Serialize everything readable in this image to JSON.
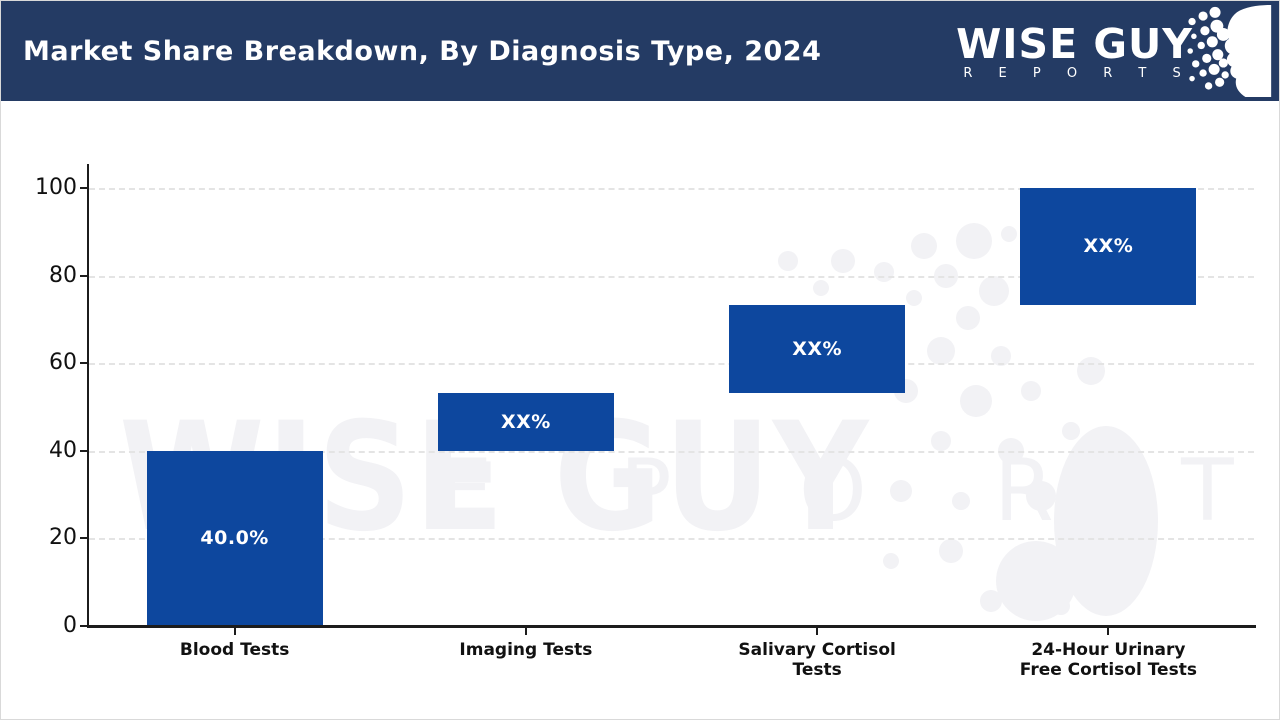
{
  "header": {
    "title": "Market Share Breakdown, By Diagnosis Type, 2024",
    "logo": {
      "line1": "WISE GUY",
      "line2": "R E P O R T S"
    }
  },
  "watermark": {
    "line1": "WISE GUY",
    "line2": "R E P O R T S"
  },
  "colors": {
    "header_bg": "#243B64",
    "bar": "#0D479E",
    "bar_label": "#FFFFFF",
    "axis": "#1C1C1C",
    "grid": "#E4E4E4",
    "watermark": "#F2F2F5"
  },
  "chart_data": {
    "type": "bar",
    "subtype": "waterfall",
    "title": "Market Share Breakdown, By Diagnosis Type, 2024",
    "categories": [
      "Blood Tests",
      "Imaging Tests",
      "Salivary Cortisol Tests",
      "24-Hour Urinary Free Cortisol Tests"
    ],
    "segments": [
      {
        "category": "Blood Tests",
        "start": 0,
        "end": 40,
        "value": 40.0,
        "label": "40.0%"
      },
      {
        "category": "Imaging Tests",
        "start": 40,
        "end": 53.3,
        "value": 13.3,
        "label": "XX%"
      },
      {
        "category": "Salivary Cortisol Tests",
        "start": 53.3,
        "end": 73.3,
        "value": 20.0,
        "label": "XX%"
      },
      {
        "category": "24-Hour Urinary Free Cortisol Tests",
        "start": 73.3,
        "end": 100,
        "value": 26.7,
        "label": "XX%"
      }
    ],
    "xlabel": "",
    "ylabel": "",
    "ylim": [
      0,
      100
    ],
    "yticks": [
      0,
      20,
      40,
      60,
      80,
      100
    ],
    "grid": "horizontal-dashed",
    "legend": "none"
  }
}
